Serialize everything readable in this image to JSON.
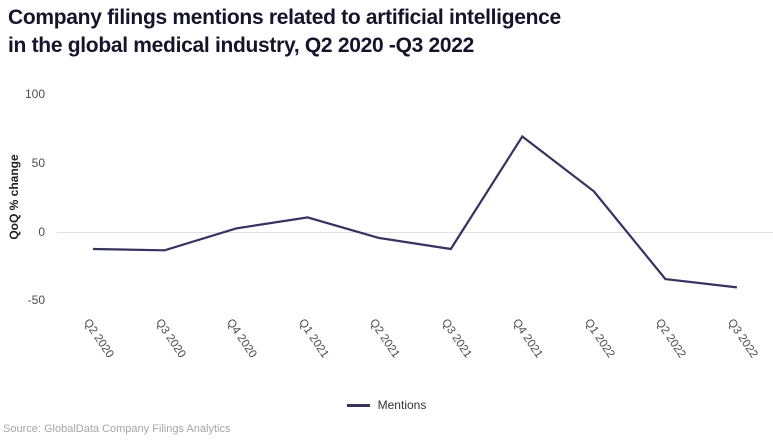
{
  "title": {
    "line1": "Company filings mentions related to artificial intelligence",
    "line2": "in the global medical industry, Q2 2020 -Q3 2022"
  },
  "chart_data": {
    "type": "line",
    "categories": [
      "Q2 2020",
      "Q3 2020",
      "Q4 2020",
      "Q1 2021",
      "Q2 2021",
      "Q3 2021",
      "Q4 2021",
      "Q1 2022",
      "Q2 2022",
      "Q3 2022"
    ],
    "series": [
      {
        "name": "Mentions",
        "values": [
          -12,
          -13,
          3,
          11,
          -4,
          -12,
          70,
          30,
          -34,
          -40
        ]
      }
    ],
    "title": "Company filings mentions related to artificial intelligence in the global medical industry, Q2 2020 -Q3 2022",
    "xlabel": "",
    "ylabel": "QoQ % change",
    "yticks": [
      100,
      50,
      0,
      -50
    ],
    "ylim": [
      -60,
      105
    ],
    "grid": "zero-line-only",
    "legend_position": "bottom-center"
  },
  "legend": {
    "label": "Mentions"
  },
  "source": "Source: GlobalData Company Filings Analytics",
  "colors": {
    "title": "#14142b",
    "line": "#363360",
    "gridline": "#e0e0e0",
    "tick_label": "#4d4d4d",
    "axis_label": "#222222",
    "source": "#a6a6a6"
  }
}
